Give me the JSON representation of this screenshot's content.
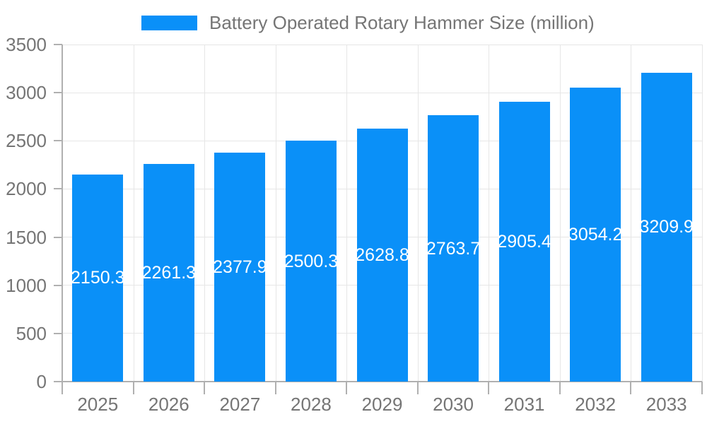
{
  "legend": {
    "label": "Battery Operated Rotary Hammer Size (million)"
  },
  "colors": {
    "bar": "#0a90f8",
    "grid": "#e6e6e6",
    "axis": "#b0b0b0",
    "tick_label": "#757575",
    "legend_text": "#757575",
    "value_label": "#ffffff",
    "background": "#ffffff"
  },
  "chart_data": {
    "type": "bar",
    "title": "Battery Operated Rotary Hammer Size (million)",
    "categories": [
      "2025",
      "2026",
      "2027",
      "2028",
      "2029",
      "2030",
      "2031",
      "2032",
      "2033"
    ],
    "values": [
      2150.3,
      2261.3,
      2377.9,
      2500.3,
      2628.8,
      2763.7,
      2905.4,
      3054.2,
      3209.9
    ],
    "value_labels": [
      "2150.3",
      "2261.3",
      "2377.9",
      "2500.3",
      "2628.8",
      "2763.7",
      "2905.4",
      "3054.2",
      "3209.9"
    ],
    "xlabel": "",
    "ylabel": "",
    "ylim": [
      0,
      3500
    ],
    "y_ticks": [
      0,
      500,
      1000,
      1500,
      2000,
      2500,
      3000,
      3500
    ],
    "grid": true,
    "legend_position": "top",
    "value_label_position": "inside-middle"
  }
}
